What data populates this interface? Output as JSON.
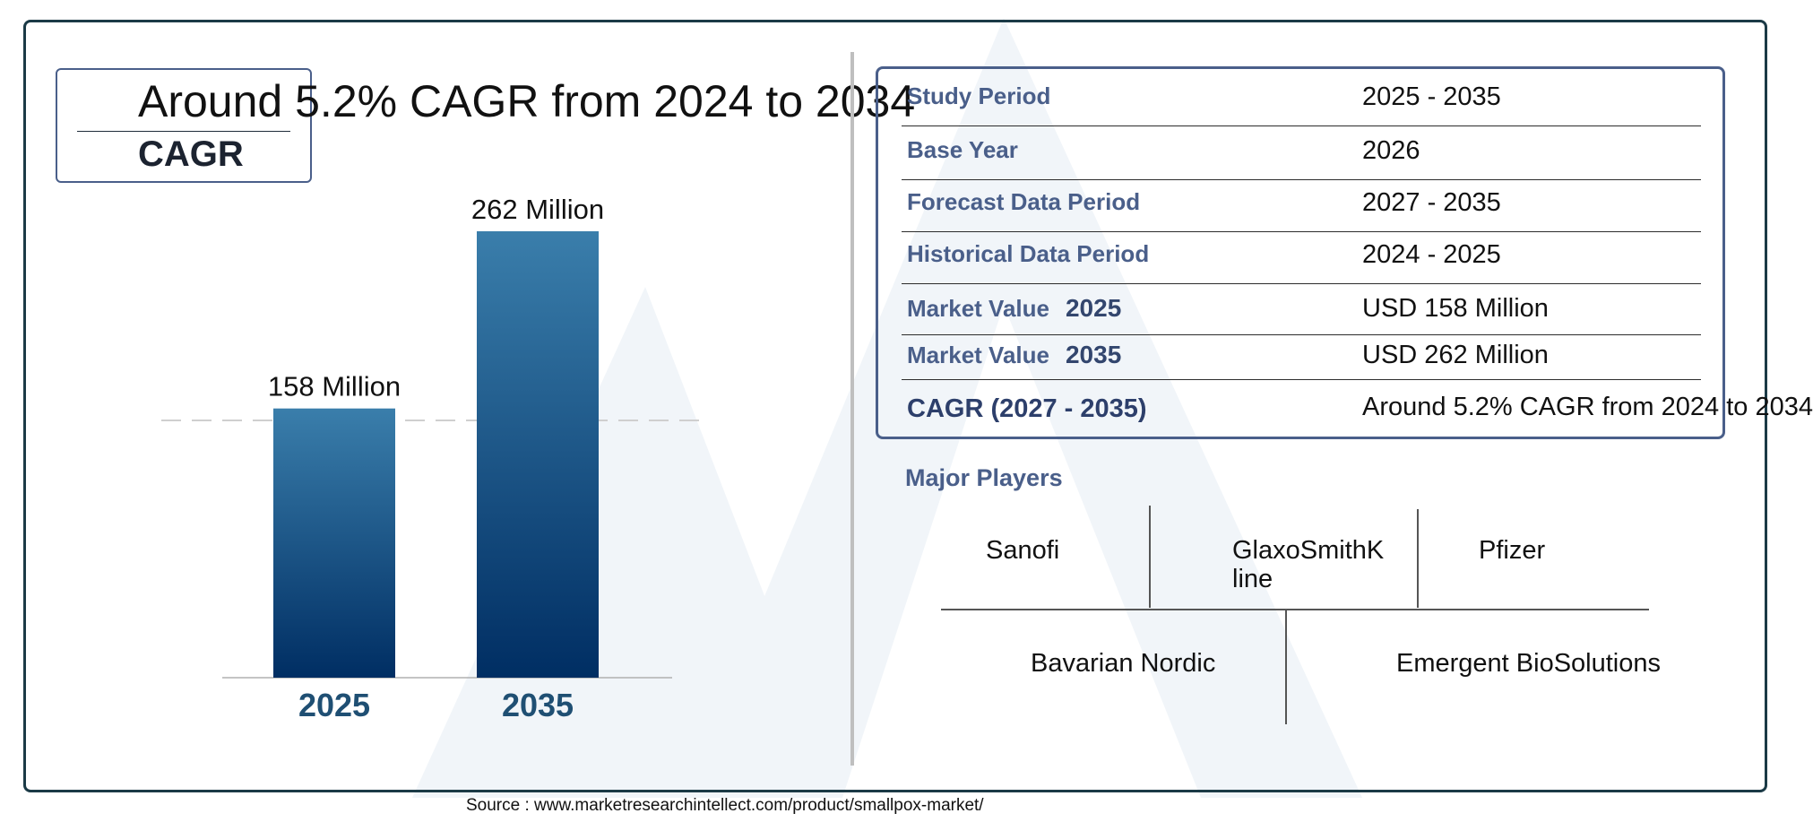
{
  "headline": "Around 5.2% CAGR from 2024 to 2034",
  "cagr_label": "CAGR",
  "chart_data": {
    "type": "bar",
    "categories": [
      "2025",
      "2035"
    ],
    "values": [
      158,
      262
    ],
    "data_labels": [
      "158 Million",
      "262 Million"
    ],
    "title": "",
    "xlabel": "",
    "ylabel": "",
    "ylim": [
      0,
      262
    ],
    "grid": false,
    "colors": {
      "bar_top": "#3a7eab",
      "bar_bottom": "#002e63",
      "tick_label": "#1f4f73",
      "reference_line": "#cfcfcf"
    }
  },
  "table": {
    "rows": [
      {
        "label": "Study Period",
        "year": "",
        "value": "2025 - 2035"
      },
      {
        "label": "Base Year",
        "year": "",
        "value": "2026"
      },
      {
        "label": "Forecast Data Period",
        "year": "",
        "value": "2027 - 2035"
      },
      {
        "label": "Historical Data Period",
        "year": "",
        "value": "2024 - 2025"
      },
      {
        "label": "Market Value",
        "year": "2025",
        "value": "USD 158 Million"
      },
      {
        "label": "Market Value",
        "year": "2035",
        "value": "USD 262 Million"
      },
      {
        "label": "CAGR (2027 - 2035)",
        "year": "",
        "value": "Around 5.2% CAGR from 2024 to 2034"
      }
    ]
  },
  "players": {
    "title": "Major Players",
    "names": [
      "Sanofi",
      "GlaxoSmithKline",
      "Pfizer",
      "Bavarian Nordic",
      "Emergent BioSolutions"
    ]
  },
  "source": "Source : www.marketresearchintellect.com/product/smallpox-market/",
  "colors": {
    "accent": "#4a5f8a",
    "frame": "#1b3a46",
    "watermark": "#eef3f7"
  }
}
